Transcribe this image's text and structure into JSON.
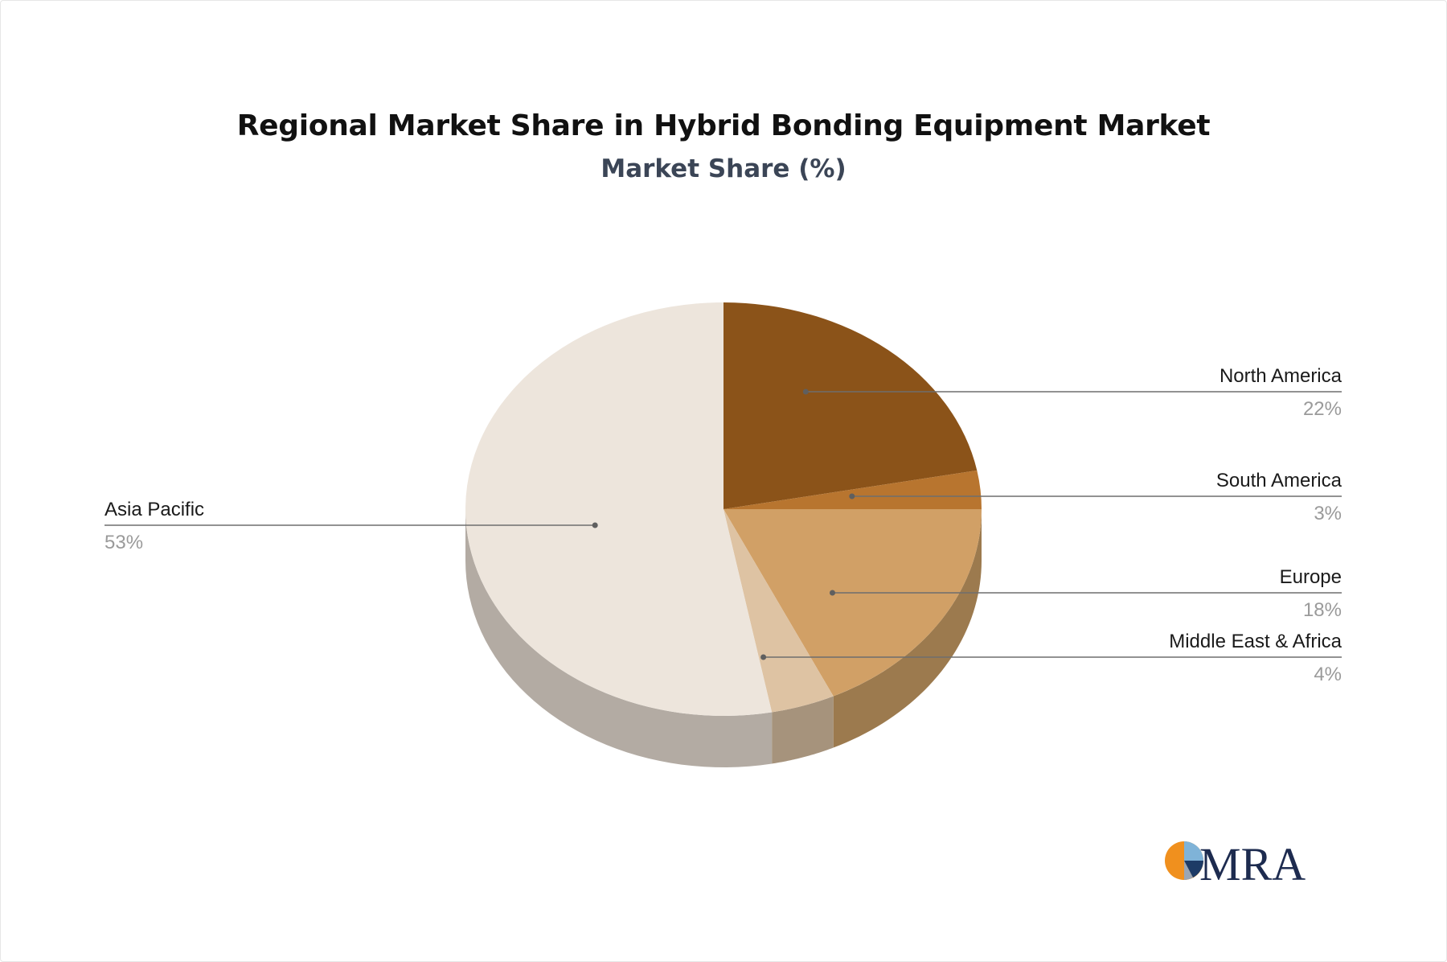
{
  "title": "Regional Market Share in Hybrid Bonding Equipment Market",
  "subtitle": "Market Share (%)",
  "logo_text": "MRA",
  "chart_data": {
    "type": "pie",
    "title": "Regional Market Share in Hybrid Bonding Equipment Market",
    "subtitle": "Market Share (%)",
    "categories": [
      "North America",
      "South America",
      "Europe",
      "Middle East & Africa",
      "Asia Pacific"
    ],
    "values": [
      22,
      3,
      18,
      4,
      53
    ],
    "value_labels": [
      "22%",
      "3%",
      "18%",
      "4%",
      "53%"
    ],
    "colors": [
      "#8b5319",
      "#b8752f",
      "#d1a066",
      "#dec3a3",
      "#ede5dc"
    ],
    "side_colors": [
      "#6a4213",
      "#8a5a26",
      "#9c7a4e",
      "#a6937c",
      "#b3aba3"
    ],
    "style": "3d"
  }
}
